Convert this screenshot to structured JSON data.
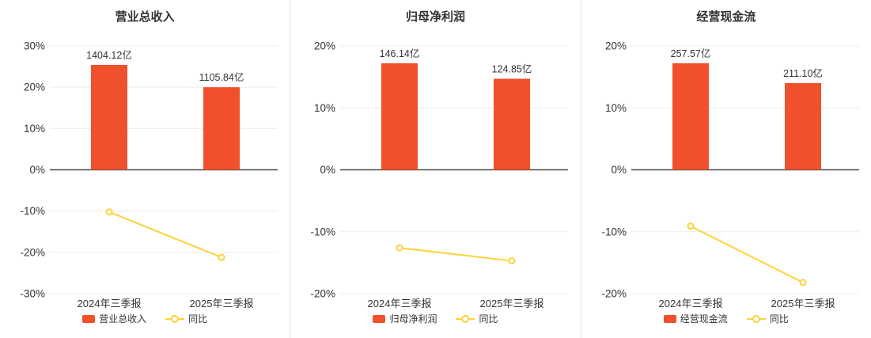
{
  "colors": {
    "bar": "#f0502c",
    "line": "#fbd33c",
    "grid": "#ececec",
    "zero_axis": "#4d4d4d",
    "text": "#333333",
    "divider": "#e5e5e5",
    "marker_fill": "#ffffff"
  },
  "chart_data": [
    {
      "type": "bar-line-combo",
      "title": "营业总收入",
      "categories": [
        "2024年三季报",
        "2025年三季报"
      ],
      "bar_series": {
        "name": "营业总收入",
        "unit": "亿",
        "values": [
          1404.12,
          1105.84
        ],
        "value_labels": [
          "1404.12亿",
          "1105.84亿"
        ],
        "axis_top_pct": [
          25.4,
          20.0
        ]
      },
      "line_series": {
        "name": "同比",
        "values_pct": [
          -10.2,
          -21.2
        ]
      },
      "y_axis": {
        "tick_values": [
          30,
          20,
          10,
          0,
          -10,
          -20,
          -30
        ],
        "tick_labels": [
          "30%",
          "20%",
          "10%",
          "0%",
          "-10%",
          "-20%",
          "-30%"
        ],
        "ylim": [
          -30,
          30
        ]
      },
      "legend": [
        "营业总收入",
        "同比"
      ],
      "grid": true
    },
    {
      "type": "bar-line-combo",
      "title": "归母净利润",
      "categories": [
        "2024年三季报",
        "2025年三季报"
      ],
      "bar_series": {
        "name": "归母净利润",
        "unit": "亿",
        "values": [
          146.14,
          124.85
        ],
        "value_labels": [
          "146.14亿",
          "124.85亿"
        ],
        "axis_top_pct": [
          17.2,
          14.7
        ]
      },
      "line_series": {
        "name": "同比",
        "values_pct": [
          -12.6,
          -14.7
        ]
      },
      "y_axis": {
        "tick_values": [
          20,
          10,
          0,
          -10,
          -20
        ],
        "tick_labels": [
          "20%",
          "10%",
          "0%",
          "-10%",
          "-20%"
        ],
        "ylim": [
          -20,
          20
        ]
      },
      "legend": [
        "归母净利润",
        "同比"
      ],
      "grid": true
    },
    {
      "type": "bar-line-combo",
      "title": "经营现金流",
      "categories": [
        "2024年三季报",
        "2025年三季报"
      ],
      "bar_series": {
        "name": "经营现金流",
        "unit": "亿",
        "values": [
          257.57,
          211.1
        ],
        "value_labels": [
          "257.57亿",
          "211.10亿"
        ],
        "axis_top_pct": [
          17.2,
          14.0
        ]
      },
      "line_series": {
        "name": "同比",
        "values_pct": [
          -9.1,
          -18.2
        ]
      },
      "y_axis": {
        "tick_values": [
          20,
          10,
          0,
          -10,
          -20
        ],
        "tick_labels": [
          "20%",
          "10%",
          "0%",
          "-10%",
          "-20%"
        ],
        "ylim": [
          -20,
          20
        ]
      },
      "legend": [
        "经营现金流",
        "同比"
      ],
      "grid": true
    }
  ]
}
